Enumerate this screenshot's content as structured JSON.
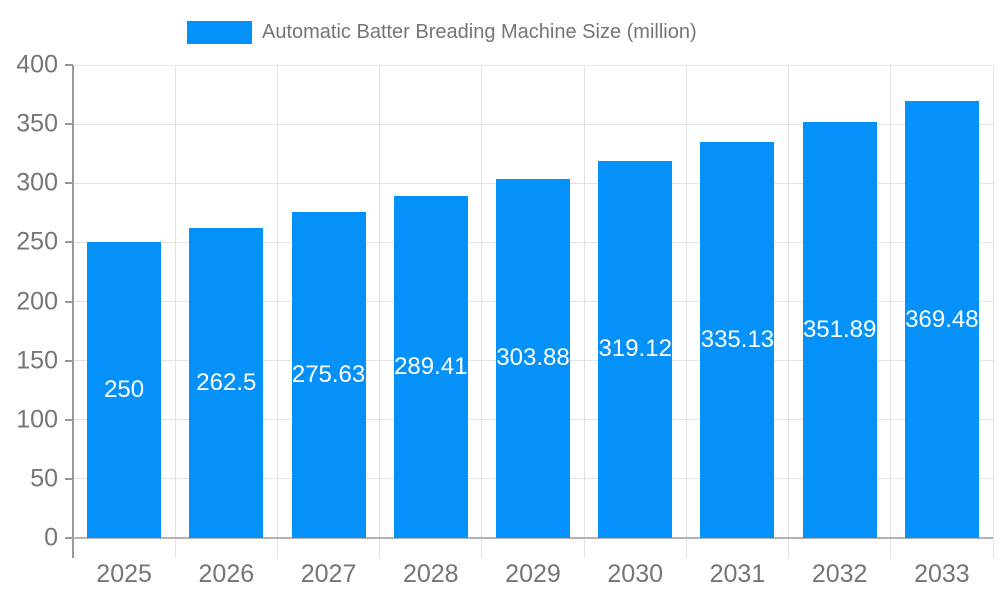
{
  "legend": {
    "label": "Automatic Batter Breading Machine Size (million)"
  },
  "chart_data": {
    "type": "bar",
    "title": "Automatic Batter Breading Machine Size (million)",
    "categories": [
      "2025",
      "2026",
      "2027",
      "2028",
      "2029",
      "2030",
      "2031",
      "2032",
      "2033"
    ],
    "values": [
      250,
      262.5,
      275.63,
      289.41,
      303.88,
      319.12,
      335.13,
      351.89,
      369.48
    ],
    "value_labels": [
      "250",
      "262.5",
      "275.63",
      "289.41",
      "303.88",
      "319.12",
      "335.13",
      "351.89",
      "369.48"
    ],
    "yticks": [
      0,
      50,
      100,
      150,
      200,
      250,
      300,
      350,
      400
    ],
    "ylim": [
      0,
      400
    ],
    "xlabel": "",
    "ylabel": "",
    "grid": true,
    "legend_position": "top",
    "colors": {
      "bar": "#0591fa",
      "axis_label": "#757575",
      "legend_text": "#757575",
      "value_label": "#ffffff",
      "gridline": "#e3e3e3",
      "axis_line": "#999999",
      "x_axis_line": "#b3b3b3",
      "background": "#ffffff"
    }
  }
}
